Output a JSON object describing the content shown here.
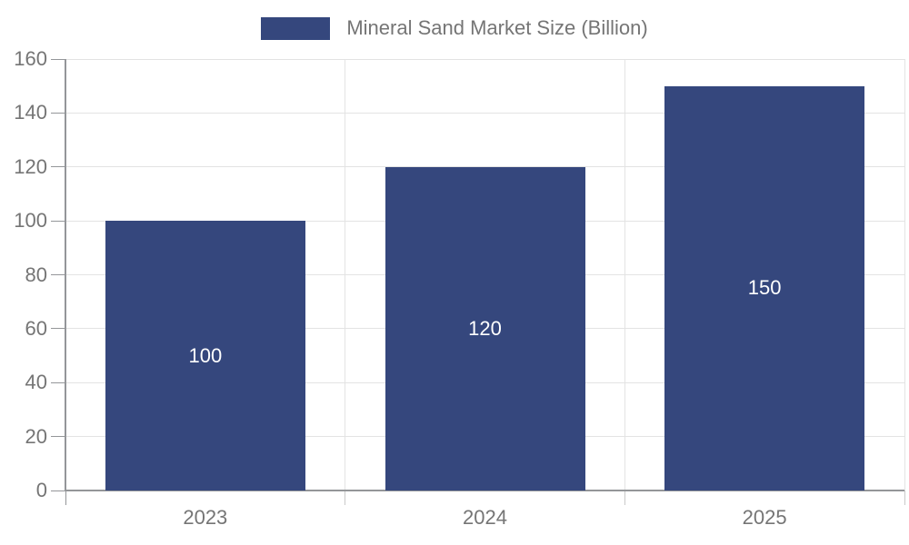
{
  "chart_data": {
    "type": "bar",
    "title": "Mineral Sand Market Size (Billion)",
    "categories": [
      "2023",
      "2024",
      "2025"
    ],
    "values": [
      100,
      120,
      150
    ],
    "data_labels": [
      "100",
      "120",
      "150"
    ],
    "data_label_position": "inside-center",
    "xlabel": "",
    "ylabel": "",
    "ylim": [
      0,
      160
    ],
    "yticks": [
      0,
      20,
      40,
      60,
      80,
      100,
      120,
      140,
      160
    ],
    "grid": true,
    "legend_position": "top-center",
    "colors": {
      "bar": "#35477d",
      "bar_label": "#ffffff",
      "axis_line": "#949699",
      "grid_line": "#e3e3e3",
      "tick_text": "#757575",
      "legend_text": "#757575",
      "background": "#ffffff"
    }
  }
}
